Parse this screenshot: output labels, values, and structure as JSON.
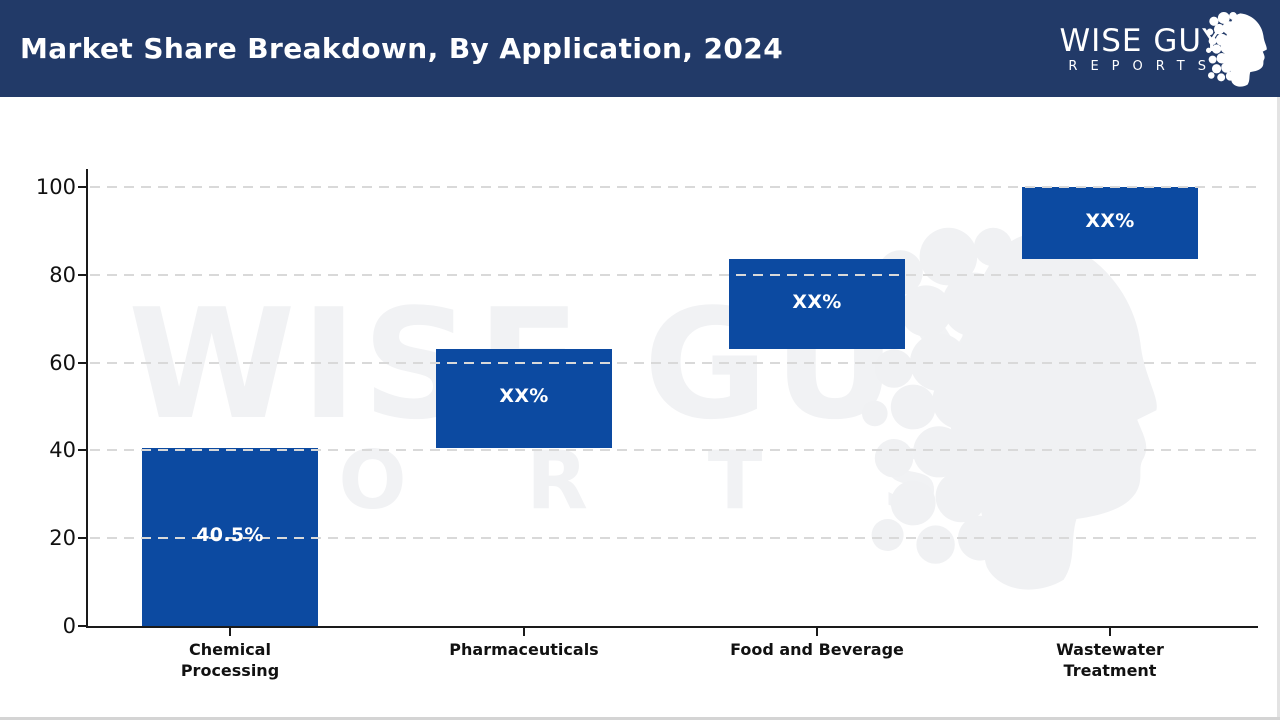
{
  "header": {
    "title": "Market Share Breakdown, By Application, 2024",
    "bg_color": "#223a68",
    "logo": {
      "line1": "WISE GUY",
      "line2": "REPORTS"
    }
  },
  "watermark": {
    "line1": "WISE GUY",
    "line2": "P O R T S"
  },
  "chart_data": {
    "type": "bar",
    "subtype": "waterfall",
    "title": "Market Share Breakdown, By Application, 2024",
    "categories": [
      "Chemical Processing",
      "Pharmaceuticals",
      "Food and Beverage",
      "Wastewater Treatment"
    ],
    "category_lines": [
      [
        "Chemical",
        "Processing"
      ],
      [
        "Pharmaceuticals"
      ],
      [
        "Food and Beverage"
      ],
      [
        "Wastewater",
        "Treatment"
      ]
    ],
    "series": [
      {
        "name": "Market share (%)",
        "segments": [
          {
            "category": "Chemical Processing",
            "start": 0,
            "end": 40.5,
            "label": "40.5%"
          },
          {
            "category": "Pharmaceuticals",
            "start": 40.5,
            "end": 63.2,
            "label": "XX%"
          },
          {
            "category": "Food and Beverage",
            "start": 63.2,
            "end": 83.5,
            "label": "XX%"
          },
          {
            "category": "Wastewater Treatment",
            "start": 83.5,
            "end": 100,
            "label": "XX%"
          }
        ]
      }
    ],
    "xlabel": "",
    "ylabel": "",
    "ylim": [
      0,
      104
    ],
    "yticks": [
      0,
      20,
      40,
      60,
      80,
      100
    ],
    "grid": "horizontal-dashed",
    "legend": "none",
    "bar_color": "#0c4aa1",
    "bar_label_color": "#ffffff",
    "axis_color": "#1a1a1a"
  }
}
